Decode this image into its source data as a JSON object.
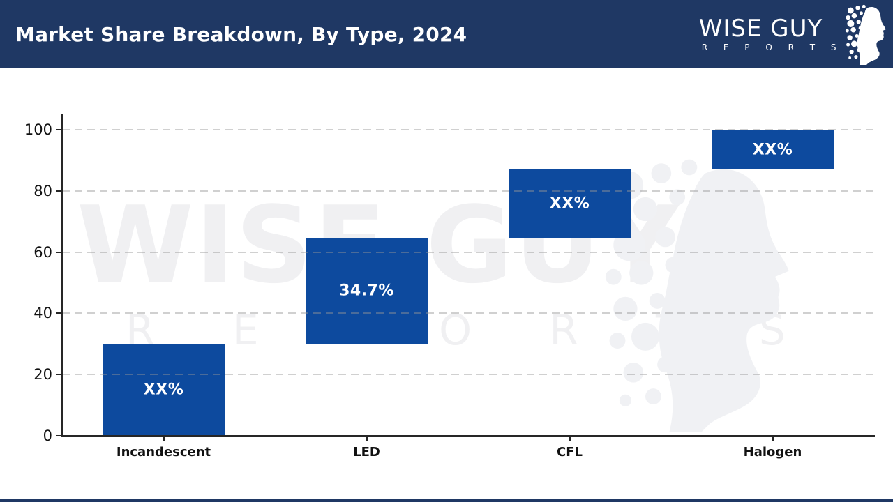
{
  "colors": {
    "header_bg": "#1f3864",
    "footer_bg": "#1f3864",
    "bar": "#0d4a9e",
    "bar_label": "#ffffff",
    "watermark": "#f0f0f2",
    "axis": "#262626"
  },
  "header": {
    "title": "Market Share Breakdown, By Type, 2024",
    "logo": {
      "line1": "WISE GUY",
      "line2": "R E P O R T S"
    }
  },
  "watermark": {
    "line1": "WISE GUY",
    "line2": "R E P O R T S"
  },
  "chart_data": {
    "type": "bar",
    "subtype": "waterfall-floating-bars",
    "title": "Market Share Breakdown, By Type, 2024",
    "xlabel": "",
    "ylabel": "",
    "categories": [
      "Incandescent",
      "LED",
      "CFL",
      "Halogen"
    ],
    "segments": [
      {
        "category": "Incandescent",
        "start": 0,
        "end": 30,
        "label": "XX%"
      },
      {
        "category": "LED",
        "start": 30,
        "end": 64.7,
        "label": "34.7%"
      },
      {
        "category": "CFL",
        "start": 64.7,
        "end": 86.9,
        "label": "XX%"
      },
      {
        "category": "Halogen",
        "start": 86.9,
        "end": 100,
        "label": "XX%"
      }
    ],
    "yticks": [
      0,
      20,
      40,
      60,
      80,
      100
    ],
    "ylim": [
      0,
      105
    ],
    "grid": "horizontal-dashed-over-bars",
    "legend": "none"
  }
}
